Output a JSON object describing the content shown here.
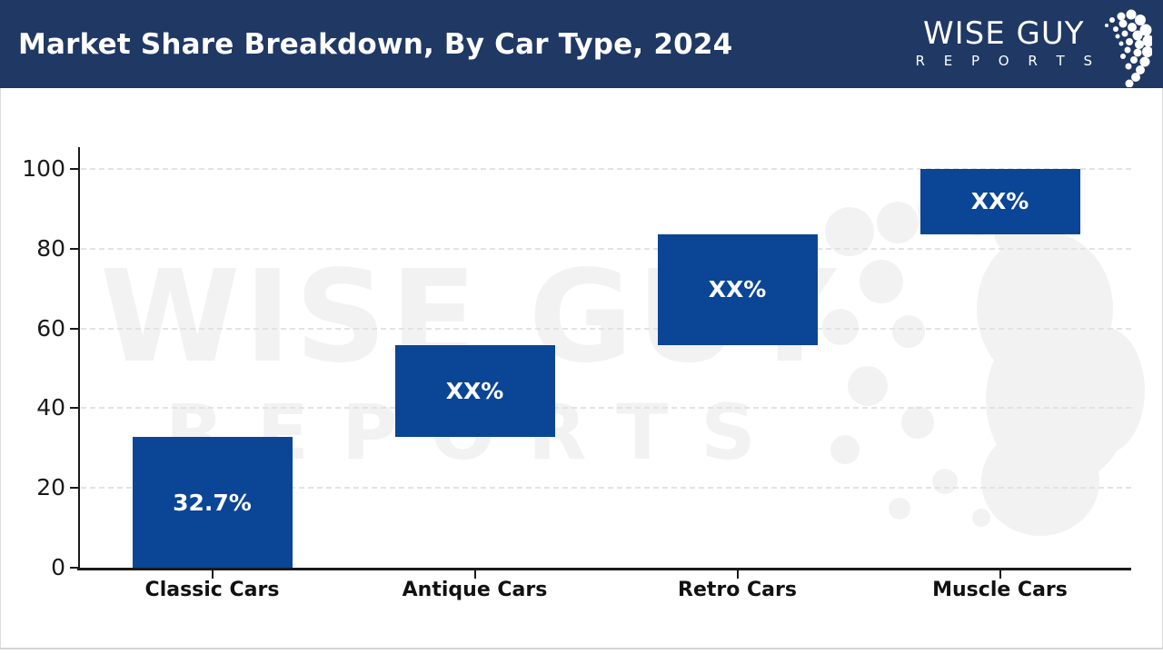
{
  "header": {
    "title": "Market Share Breakdown, By Car Type, 2024",
    "bg_color": "#1F3864",
    "logo": {
      "name": "WISE GUY",
      "subtitle": "R E P O R T S"
    }
  },
  "watermark": {
    "line1": "WISE GUY",
    "line2": "REPORTS"
  },
  "chart_data": {
    "type": "bar",
    "subtype": "waterfall",
    "title": "Market Share Breakdown, By Car Type, 2024",
    "categories": [
      "Classic Cars",
      "Antique Cars",
      "Retro Cars",
      "Muscle Cars"
    ],
    "segments": [
      {
        "category": "Classic Cars",
        "start": 0,
        "end": 32.7,
        "label": "32.7%"
      },
      {
        "category": "Antique Cars",
        "start": 32.7,
        "end": 55.9,
        "label": "XX%"
      },
      {
        "category": "Retro Cars",
        "start": 55.9,
        "end": 83.6,
        "label": "XX%"
      },
      {
        "category": "Muscle Cars",
        "start": 83.6,
        "end": 100,
        "label": "XX%"
      }
    ],
    "xlabel": "",
    "ylabel": "",
    "ylim": [
      0,
      100
    ],
    "yticks": [
      0,
      20,
      40,
      60,
      80,
      100
    ],
    "grid": "horizontal-dashed",
    "legend": "none",
    "bar_color": "#0B4596",
    "bar_label_color": "#FFFFFF",
    "axis_color": "#1a1a1a",
    "grid_color": "#E3E3E3",
    "watermark_color": "#F2F2F2"
  }
}
